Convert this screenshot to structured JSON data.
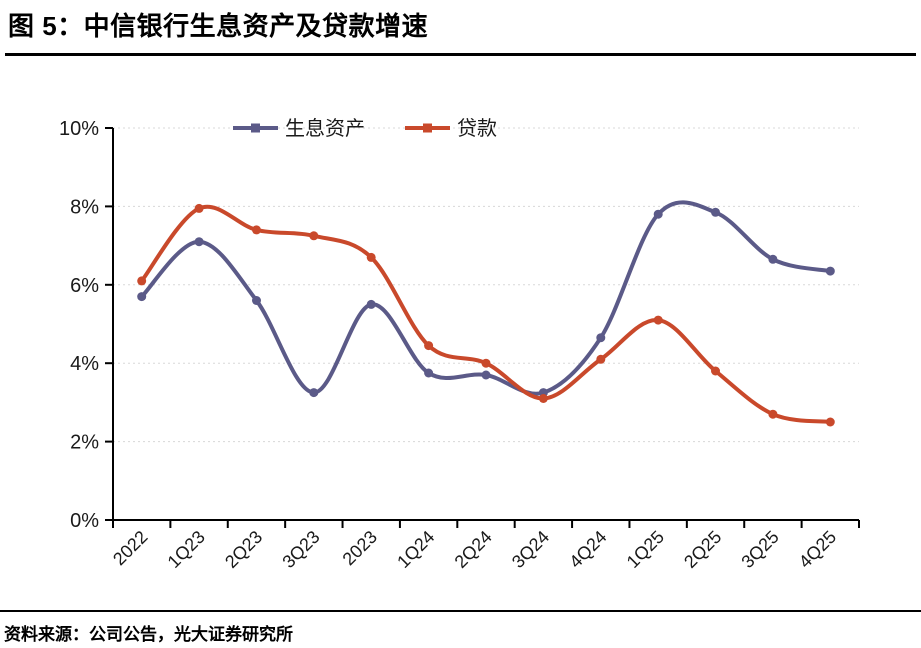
{
  "title": "图 5：中信银行生息资产及贷款增速",
  "source": "资料来源：公司公告，光大证券研究所",
  "chart_data": {
    "type": "line",
    "title": "中信银行生息资产及贷款增速",
    "categories": [
      "2022",
      "1Q23",
      "2Q23",
      "3Q23",
      "2023",
      "1Q24",
      "2Q24",
      "3Q24",
      "4Q24",
      "1Q25",
      "2Q25",
      "3Q25",
      "4Q25"
    ],
    "series": [
      {
        "name": "生息资产",
        "color": "#5b5a88",
        "values": [
          5.7,
          7.1,
          5.6,
          3.25,
          5.5,
          3.75,
          3.7,
          3.25,
          4.65,
          7.8,
          7.85,
          6.65,
          6.35
        ]
      },
      {
        "name": "贷款",
        "color": "#c9492b",
        "values": [
          6.1,
          7.95,
          7.4,
          7.25,
          6.7,
          4.45,
          4.0,
          3.1,
          4.1,
          5.1,
          3.8,
          2.7,
          2.5
        ]
      }
    ],
    "xlabel": "",
    "ylabel": "",
    "ylim": [
      0,
      10
    ],
    "ytick_step": 2,
    "ytick_suffix": "%",
    "grid": "dashed-horizontal",
    "grid_color": "#d8d8d8",
    "axis_color": "#000000",
    "legend_position": "top-inside",
    "marker": "circle",
    "legend_marker": "square"
  }
}
